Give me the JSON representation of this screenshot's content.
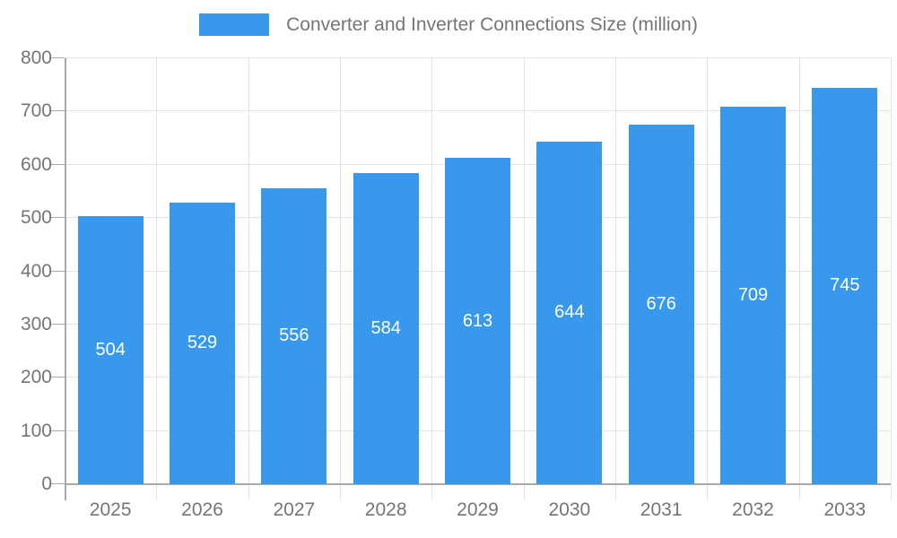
{
  "legend": {
    "label": "Converter and Inverter Connections Size (million)"
  },
  "chart_data": {
    "type": "bar",
    "title": "Converter and Inverter Connections Size (million)",
    "categories": [
      "2025",
      "2026",
      "2027",
      "2028",
      "2029",
      "2030",
      "2031",
      "2032",
      "2033"
    ],
    "values": [
      504,
      529,
      556,
      584,
      613,
      644,
      676,
      709,
      745
    ],
    "xlabel": "",
    "ylabel": "",
    "ylim": [
      0,
      800
    ],
    "yticks": [
      0,
      100,
      200,
      300,
      400,
      500,
      600,
      700,
      800
    ],
    "grid": true,
    "legend_position": "top",
    "bar_color": "#3898EC",
    "value_label_color": "#FFFFFF",
    "axis_text_color": "#757575",
    "gridline_color": "#E4E4E4",
    "axis_line_color": "#A9A9A9"
  }
}
